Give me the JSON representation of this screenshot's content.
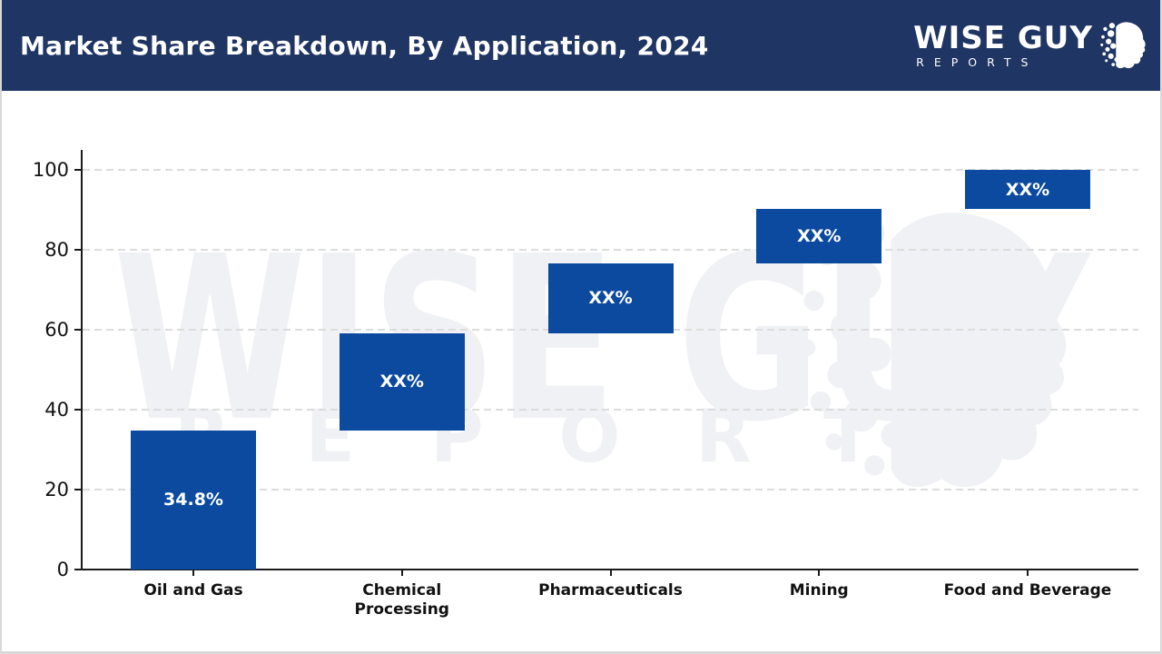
{
  "header": {
    "title": "Market Share Breakdown, By Application, 2024",
    "bg_color": "#1f3563",
    "logo": {
      "name": "WISE GUY",
      "sub": "REPORTS"
    }
  },
  "watermark": {
    "line1": "WISE GUY",
    "line2": "REPORTS"
  },
  "chart_data": {
    "type": "bar",
    "subtype": "waterfall",
    "title": "Market Share Breakdown, By Application, 2024",
    "categories": [
      "Oil and Gas",
      "Chemical Processing",
      "Pharmaceuticals",
      "Mining",
      "Food and Beverage"
    ],
    "tick_labels": [
      "Oil and Gas",
      "Chemical\nProcessing",
      "Pharmaceuticals",
      "Mining",
      "Food and Beverage"
    ],
    "segments": [
      {
        "category": "Oil and Gas",
        "start": 0,
        "end": 34.8,
        "label": "34.8%"
      },
      {
        "category": "Chemical Processing",
        "start": 34.8,
        "end": 59.2,
        "label": "XX%"
      },
      {
        "category": "Pharmaceuticals",
        "start": 59.2,
        "end": 76.6,
        "label": "XX%"
      },
      {
        "category": "Mining",
        "start": 76.6,
        "end": 90.2,
        "label": "XX%"
      },
      {
        "category": "Food and Beverage",
        "start": 90.2,
        "end": 100,
        "label": "XX%"
      }
    ],
    "y_ticks": [
      0,
      20,
      40,
      60,
      80,
      100
    ],
    "ylim": [
      0,
      105
    ],
    "xlabel": "",
    "ylabel": "",
    "grid": "horizontal-dashed",
    "legend": "none",
    "bar_color": "#0b4a9f",
    "bar_label_color": "#ffffff"
  }
}
